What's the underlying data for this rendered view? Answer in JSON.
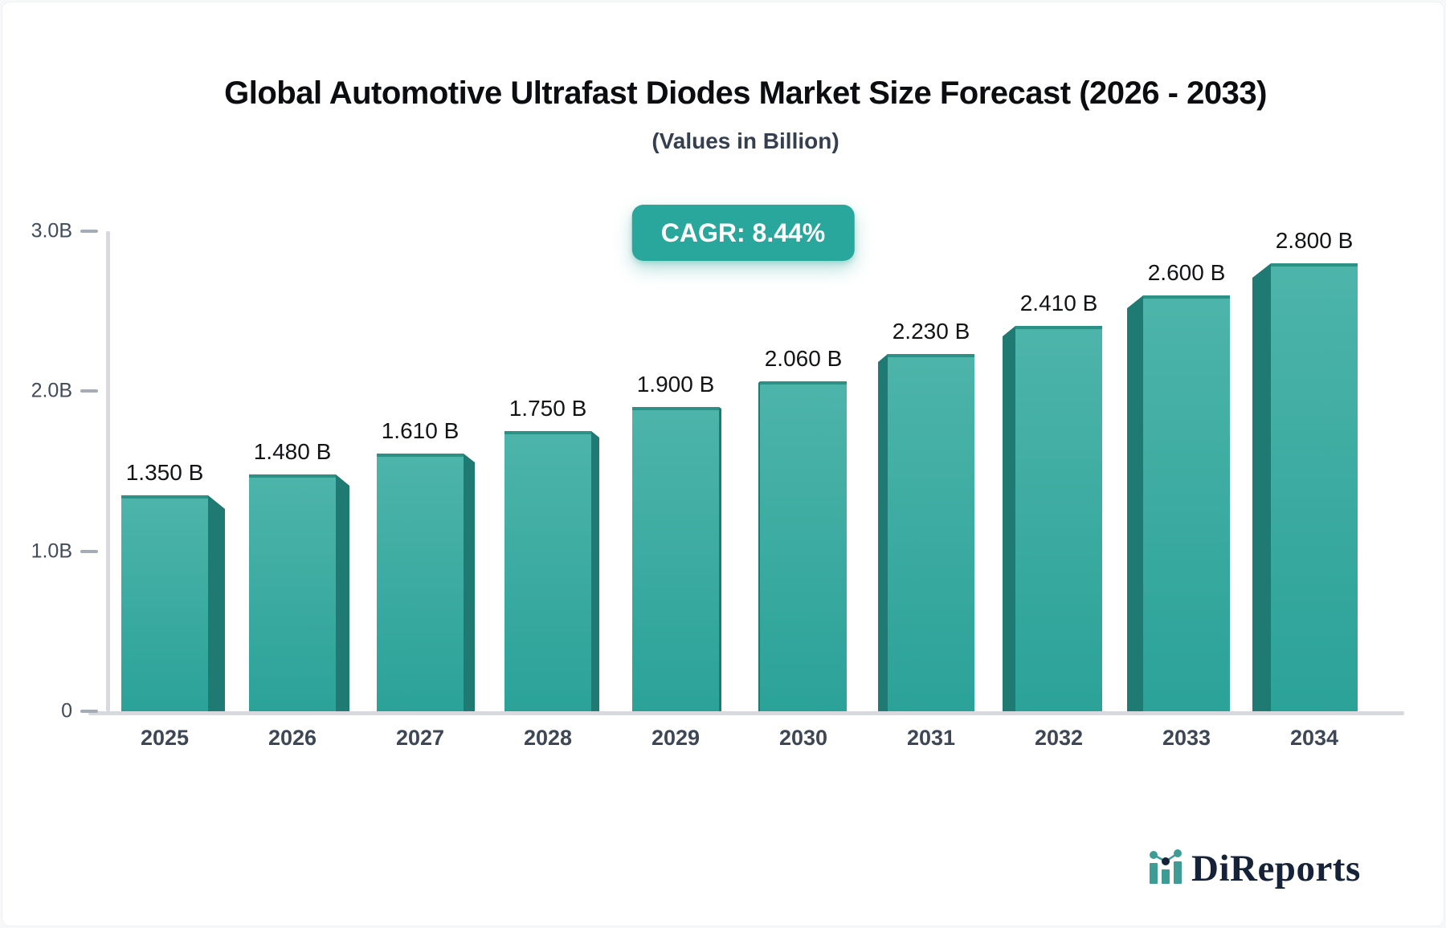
{
  "header": {
    "title": "Global Automotive Ultrafast Diodes Market Size Forecast (2026 - 2033)",
    "subtitle": "(Values in Billion)"
  },
  "badge": {
    "label": "CAGR: 8.44%",
    "background": "#2aa79c",
    "text_color": "#ffffff"
  },
  "chart_data": {
    "type": "bar",
    "title": "Global Automotive Ultrafast Diodes Market Size Forecast (2026 - 2033)",
    "subtitle": "(Values in Billion)",
    "categories": [
      "2025",
      "2026",
      "2027",
      "2028",
      "2029",
      "2030",
      "2031",
      "2032",
      "2033",
      "2034"
    ],
    "values": [
      1.35,
      1.48,
      1.61,
      1.75,
      1.9,
      2.06,
      2.23,
      2.41,
      2.6,
      2.8
    ],
    "bar_labels": [
      "1.350 B",
      "1.480 B",
      "1.610 B",
      "1.750 B",
      "1.900 B",
      "2.060 B",
      "2.230 B",
      "2.410 B",
      "2.600 B",
      "2.800 B"
    ],
    "unit": "Billion",
    "xlabel": "",
    "ylabel": "",
    "ylim": [
      0,
      3.0
    ],
    "yticks": [
      {
        "value": 0,
        "label": "0"
      },
      {
        "value": 1.0,
        "label": "1.0B"
      },
      {
        "value": 2.0,
        "label": "2.0B"
      },
      {
        "value": 3.0,
        "label": "3.0B"
      }
    ],
    "grid": false,
    "legend": false,
    "bar_style": "3d-extruded",
    "colors": {
      "bar_face_top": "#4db4aa",
      "bar_face_bottom": "#2ba298",
      "bar_top_edge": "#2b9187",
      "bar_side": "#1e7a72",
      "axis_line": "#d7d9de",
      "tick_dash": "#a6acb5",
      "axis_text": "#414b5a",
      "value_text": "#121418"
    }
  },
  "watermark": {
    "text": "DiReports",
    "icon": "mini-bar-line-chart-icon",
    "text_color": "#152238",
    "icon_teal": "#3e9c96",
    "icon_navy": "#152238"
  }
}
